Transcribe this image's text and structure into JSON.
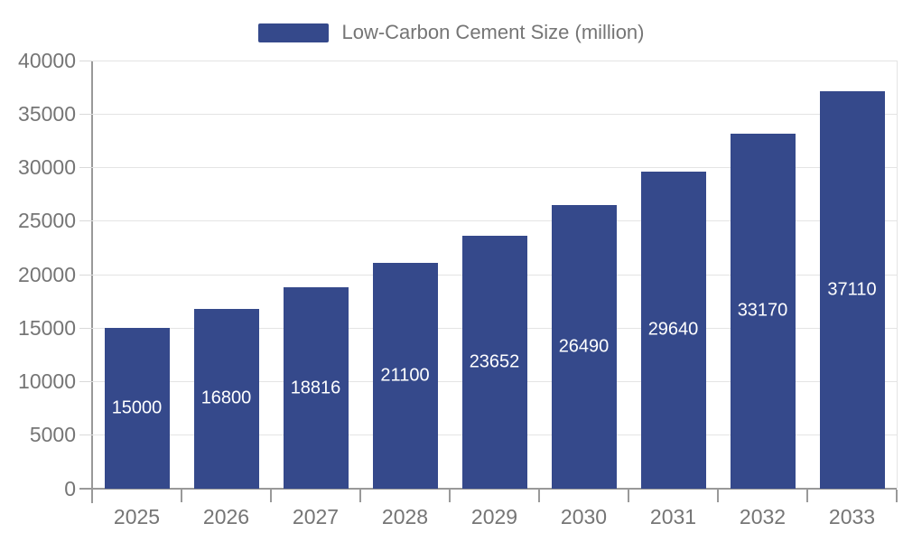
{
  "chart_data": {
    "type": "bar",
    "title": "",
    "legend": {
      "position": "top",
      "label": "Low-Carbon Cement Size (million)"
    },
    "categories": [
      "2025",
      "2026",
      "2027",
      "2028",
      "2029",
      "2030",
      "2031",
      "2032",
      "2033"
    ],
    "series": [
      {
        "name": "Low-Carbon Cement Size (million)",
        "values": [
          15000,
          16800,
          18816,
          21100,
          23652,
          26490,
          29640,
          33170,
          37110
        ]
      }
    ],
    "xlabel": "",
    "ylabel": "",
    "ylim": [
      0,
      40000
    ],
    "yticks": [
      0,
      5000,
      10000,
      15000,
      20000,
      25000,
      30000,
      35000,
      40000
    ],
    "grid": true,
    "colors": {
      "bar": "#35498b",
      "value_label": "#ffffff",
      "axis_line": "#999999",
      "gridline": "#e4e4e4",
      "tick_label": "#757575",
      "legend_text": "#757575"
    }
  }
}
